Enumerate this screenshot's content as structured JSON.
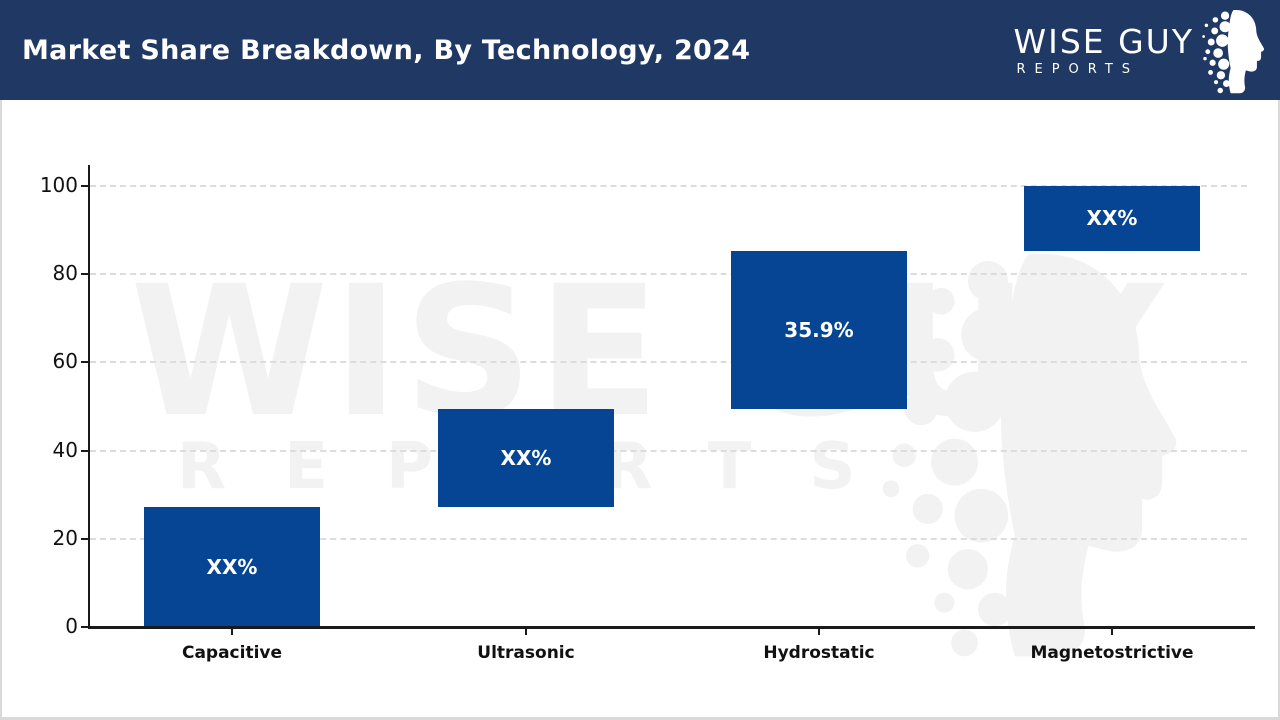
{
  "header": {
    "title": "Market Share Breakdown, By Technology, 2024",
    "logo_line1": "WISE GUY",
    "logo_line2": "REPORTS"
  },
  "watermark": {
    "line1": "WISE GUY",
    "line2": "REPORTS"
  },
  "colors": {
    "header_bg": "#203864",
    "bar": "#064494",
    "grid": "#dcdcdc",
    "axis": "#1a1a1a",
    "watermark": "#f2f2f2"
  },
  "chart_data": {
    "type": "bar",
    "subtype": "floating-waterfall",
    "title": "Market Share Breakdown, By Technology, 2024",
    "categories": [
      "Capacitive",
      "Ultrasonic",
      "Hydrostatic",
      "Magnetostrictive"
    ],
    "series": [
      {
        "name": "Market Share (%)",
        "segments": [
          {
            "category": "Capacitive",
            "start": 0,
            "end": 27.2,
            "label": "XX%"
          },
          {
            "category": "Ultrasonic",
            "start": 27.2,
            "end": 49.4,
            "label": "XX%"
          },
          {
            "category": "Hydrostatic",
            "start": 49.4,
            "end": 85.3,
            "label": "35.9%"
          },
          {
            "category": "Magnetostrictive",
            "start": 85.3,
            "end": 100,
            "label": "XX%"
          }
        ]
      }
    ],
    "xlabel": "",
    "ylabel": "",
    "ylim": [
      0,
      100
    ],
    "yticks": [
      0,
      20,
      40,
      60,
      80,
      100
    ],
    "grid": "horizontal-dashed",
    "legend": "none"
  }
}
